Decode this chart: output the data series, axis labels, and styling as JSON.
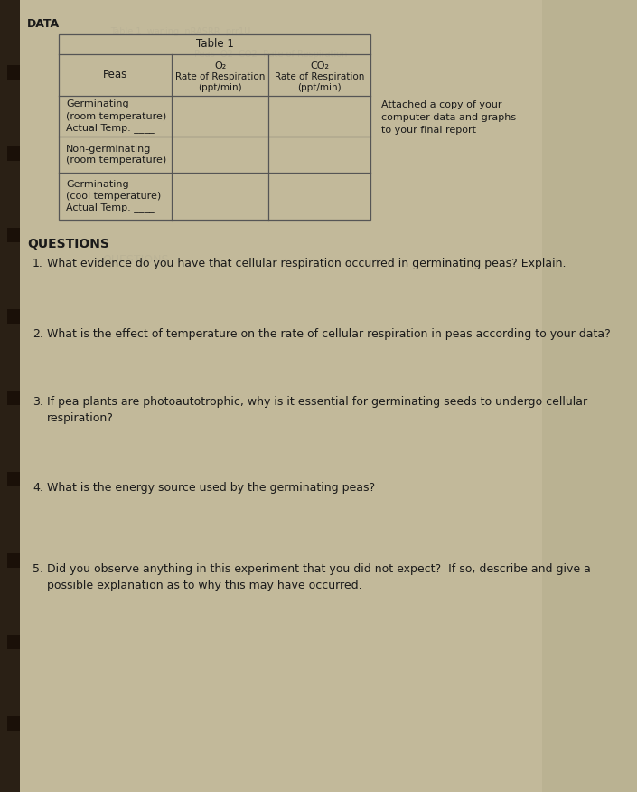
{
  "title_data": "DATA",
  "table_title": "Table 1",
  "col_headers_peas": "Peas",
  "col_header_o2_line1": "O₂",
  "col_header_o2_line2": "Rate of Respiration",
  "col_header_o2_line3": "(ppt/min)",
  "col_header_co2_line1": "CO₂",
  "col_header_co2_line2": "Rate of Respiration",
  "col_header_co2_line3": "(ppt/min)",
  "row_labels": [
    [
      "Germinating",
      "(room temperature)",
      "Actual Temp. ____"
    ],
    [
      "Non-germinating",
      "(room temperature)"
    ],
    [
      "Germinating",
      "(cool temperature)",
      "Actual Temp. ____"
    ]
  ],
  "side_note_lines": [
    "Attached a copy of your",
    "computer data and graphs",
    "to your final report"
  ],
  "questions_header": "QUESTIONS",
  "questions": [
    {
      "num": "1.",
      "text": "What evidence do you have that cellular respiration occurred in germinating peas? Explain."
    },
    {
      "num": "2.",
      "text": "What is the effect of temperature on the rate of cellular respiration in peas according to your data?"
    },
    {
      "num": "3.",
      "text": "If pea plants are photoautotrophic, why is it essential for germinating seeds to undergo cellular\nrespiration?"
    },
    {
      "num": "4.",
      "text": "What is the energy source used by the germinating peas?"
    },
    {
      "num": "5.",
      "text": "Did you observe anything in this experiment that you did not expect?  If so, describe and give a\npossible explanation as to why this may have occurred."
    }
  ],
  "bg_light": "#c8c0aa",
  "bg_page": "#b8b0a0",
  "text_color": "#1a1a1a",
  "binding_color": "#1a1510",
  "line_color": "#444444",
  "table_line_color": "#555555",
  "side_bg": "#a8a090"
}
